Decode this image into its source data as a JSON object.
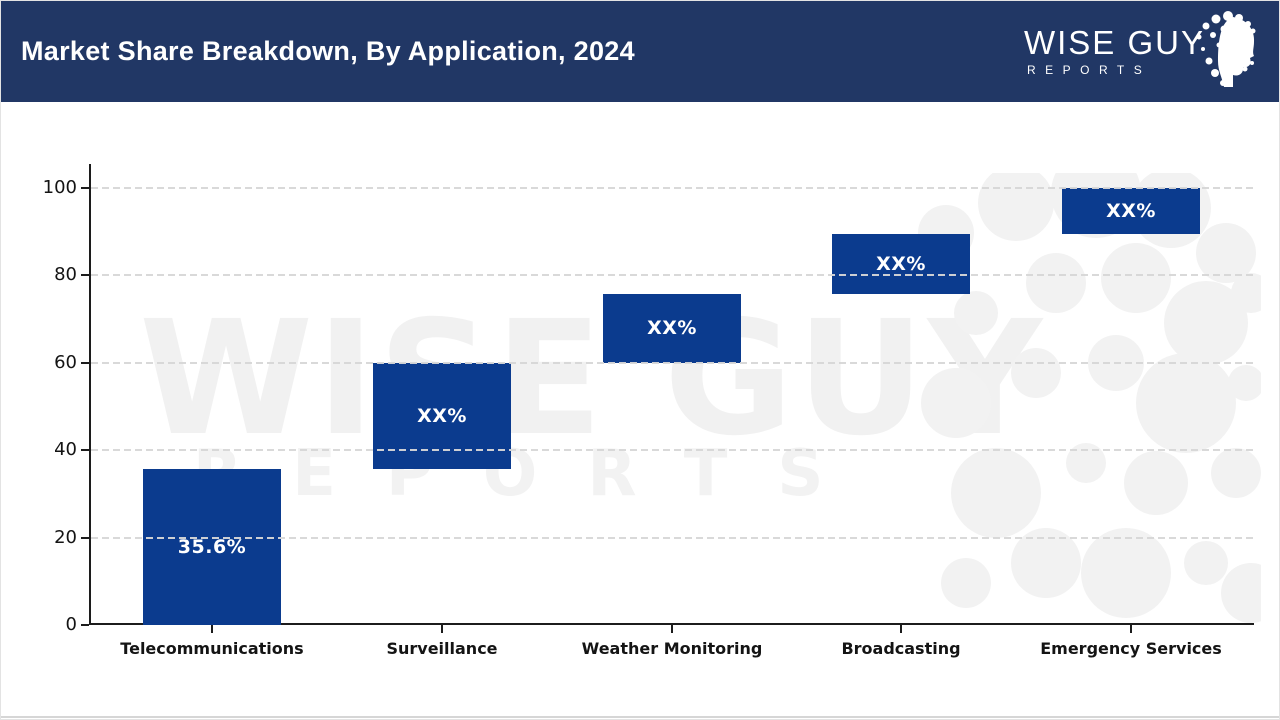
{
  "header": {
    "title": "Market Share Breakdown, By Application, 2024",
    "logo": {
      "line1": "WISE GUY",
      "line2": "REPORTS"
    }
  },
  "watermark": {
    "line1": "WISE GUY",
    "line2": "REPORTS"
  },
  "chart_data": {
    "type": "bar",
    "subtype": "waterfall",
    "title": "Market Share Breakdown, By Application, 2024",
    "categories": [
      "Telecommunications",
      "Surveillance",
      "Weather Monitoring",
      "Broadcasting",
      "Emergency Services"
    ],
    "series": [
      {
        "category": "Telecommunications",
        "start": 0.0,
        "end": 35.6,
        "value_label": "35.6%"
      },
      {
        "category": "Surveillance",
        "start": 35.6,
        "end": 60.0,
        "value_label": "XX%"
      },
      {
        "category": "Weather Monitoring",
        "start": 60.0,
        "end": 75.8,
        "value_label": "XX%"
      },
      {
        "category": "Broadcasting",
        "start": 75.8,
        "end": 89.5,
        "value_label": "XX%"
      },
      {
        "category": "Emergency Services",
        "start": 89.5,
        "end": 100.0,
        "value_label": "XX%"
      }
    ],
    "yticks": [
      0,
      20,
      40,
      60,
      80,
      100
    ],
    "ylim": [
      0,
      105.5
    ],
    "xlabel": "",
    "ylabel": "",
    "grid": "horizontal-dashed",
    "legend": "none",
    "colors": {
      "bar": "#0b3b8e",
      "bar_label": "#ffffff",
      "grid": "#d7d7d7",
      "axis": "#1c1c1c",
      "header_bg": "#213765",
      "tick_label": "#141414"
    }
  }
}
